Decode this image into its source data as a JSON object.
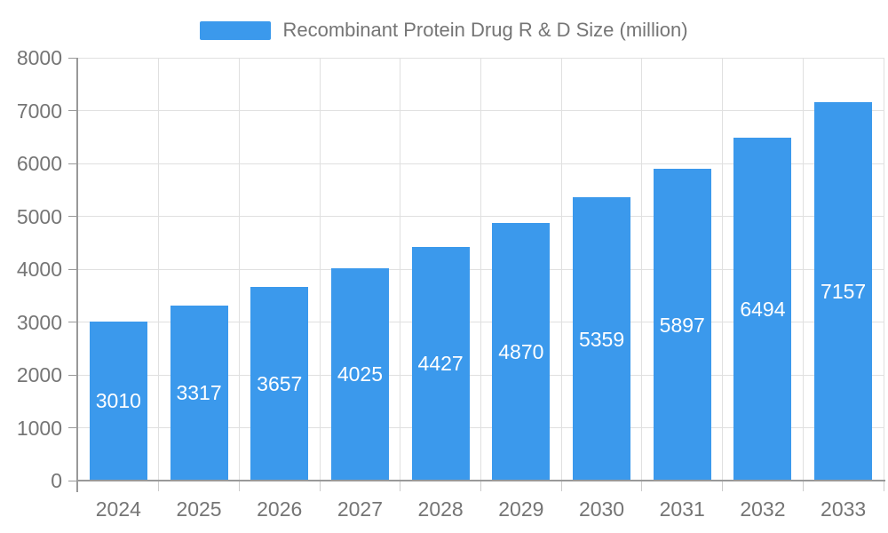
{
  "legend": {
    "label": "Recombinant Protein Drug R & D Size (million)"
  },
  "chart_data": {
    "type": "bar",
    "title": "Recombinant Protein Drug R & D Size (million)",
    "xlabel": "",
    "ylabel": "",
    "categories": [
      "2024",
      "2025",
      "2026",
      "2027",
      "2028",
      "2029",
      "2030",
      "2031",
      "2032",
      "2033"
    ],
    "values": [
      3010,
      3317,
      3657,
      4025,
      4427,
      4870,
      5359,
      5897,
      6494,
      7157
    ],
    "series": [
      {
        "name": "Recombinant Protein Drug R & D Size (million)",
        "values": [
          3010,
          3317,
          3657,
          4025,
          4427,
          4870,
          5359,
          5897,
          6494,
          7157
        ]
      }
    ],
    "ylim": [
      0,
      8000
    ],
    "yticks": [
      0,
      1000,
      2000,
      3000,
      4000,
      5000,
      6000,
      7000,
      8000
    ],
    "grid": true,
    "legend_position": "top",
    "value_labels": "inside-center",
    "colors": {
      "bar": "#3B99EC",
      "value_label": "#ffffff",
      "axis_label": "#757575",
      "axis_line": "#999999",
      "gridline": "#e0e0e0",
      "tick": "#cccccc",
      "background": "#ffffff"
    }
  }
}
